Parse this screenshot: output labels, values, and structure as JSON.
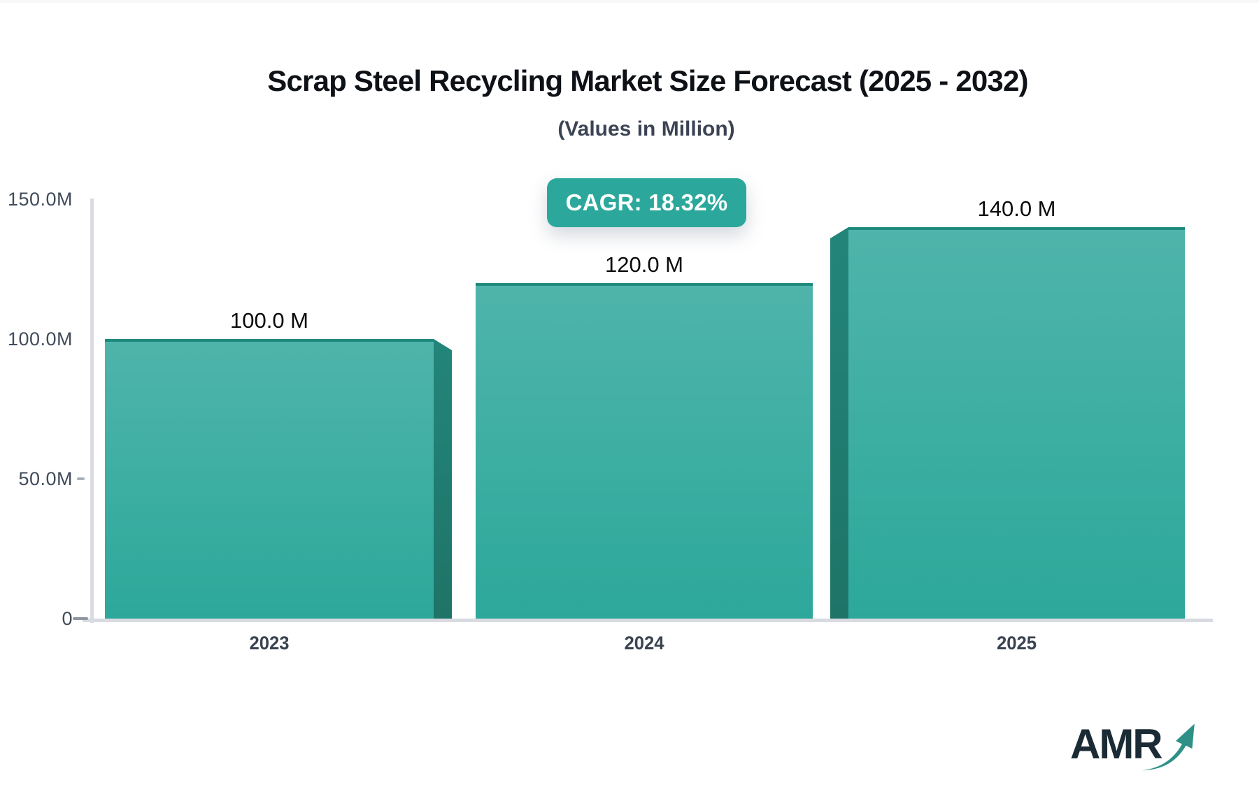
{
  "page": {
    "background": "#ffffff",
    "top_strip_color": "#f7f8fa"
  },
  "header": {
    "title": "Scrap Steel Recycling Market Size Forecast (2025 - 2032)",
    "subtitle": "(Values in Million)"
  },
  "badge": {
    "label": "CAGR: 18.32%",
    "background": "#2ba89b",
    "text_color": "#ffffff"
  },
  "chart_data": {
    "type": "bar",
    "title": "Scrap Steel Recycling Market Size Forecast (2025 - 2032)",
    "subtitle": "(Values in Million)",
    "categories": [
      "2023",
      "2024",
      "2025"
    ],
    "values": [
      100.0,
      120.0,
      140.0
    ],
    "value_labels": [
      "100.0 M",
      "120.0 M",
      "140.0 M"
    ],
    "unit": "Million",
    "ylim": [
      0,
      150
    ],
    "y_tick_values": [
      150,
      100,
      50,
      0
    ],
    "y_tick_labels": [
      "150.0M",
      "100.0M",
      "50.0M",
      "0"
    ],
    "grid": false,
    "legend": false,
    "annotation": "CAGR: 18.32%",
    "colors": {
      "bar_top": "#4fb4ab",
      "bar_bottom": "#2ca89a",
      "bar_top_edge": "#1e8a7d",
      "bar_side_top": "#23857a",
      "bar_side_bottom": "#1e7467",
      "axis": "#d9dbe1",
      "tick_small": "#aab0ba",
      "tick_zero": "#8f96a1",
      "label": "#414b5a"
    }
  },
  "branding": {
    "logo_text": "AMR",
    "logo_color": "#1b2b35",
    "arrow_color": "#2f9087"
  }
}
